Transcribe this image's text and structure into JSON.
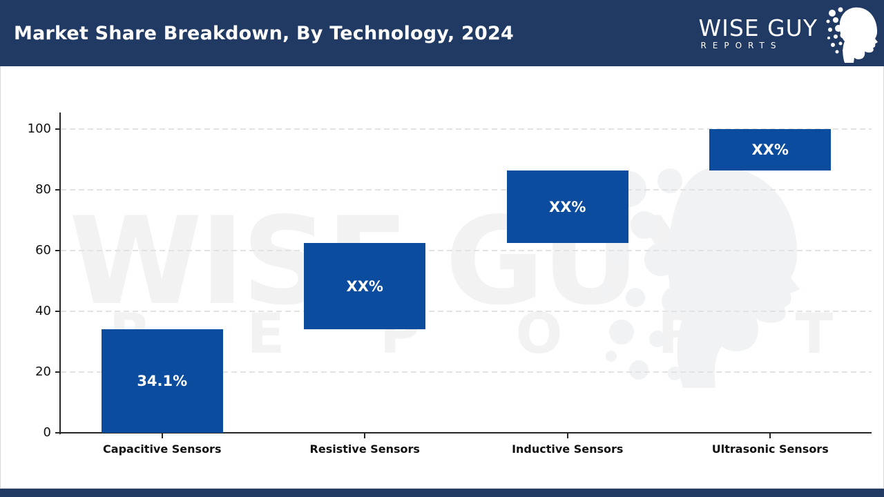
{
  "header": {
    "title": "Market Share Breakdown, By Technology, 2024",
    "logo": {
      "line1": "WISE GUY",
      "line2": "REPORTS"
    }
  },
  "watermark": {
    "line1": "WISE GUY",
    "line2": "R E P O R T S"
  },
  "colors": {
    "header_bg": "#213a63",
    "bar": "#0b4c9f",
    "bar_label": "#ffffff",
    "gridline": "#e3e3e3",
    "axis": "#262626",
    "watermark": "#f2f2f2"
  },
  "chart_data": {
    "type": "bar",
    "subtype": "waterfall",
    "title": "Market Share Breakdown, By Technology, 2024",
    "categories": [
      "Capacitive Sensors",
      "Resistive Sensors",
      "Inductive Sensors",
      "Ultrasonic Sensors"
    ],
    "series": [
      {
        "category": "Capacitive Sensors",
        "start": 0,
        "end": 34.1,
        "label": "34.1%"
      },
      {
        "category": "Resistive Sensors",
        "start": 34.1,
        "end": 62.4,
        "label": "XX%"
      },
      {
        "category": "Inductive Sensors",
        "start": 62.4,
        "end": 86.4,
        "label": "XX%"
      },
      {
        "category": "Ultrasonic Sensors",
        "start": 86.4,
        "end": 100,
        "label": "XX%"
      }
    ],
    "xlabel": "",
    "ylabel": "",
    "y_ticks": [
      0,
      20,
      40,
      60,
      80,
      100
    ],
    "ylim": [
      0,
      105
    ],
    "grid": "horizontal-dashed",
    "legend": "none"
  }
}
